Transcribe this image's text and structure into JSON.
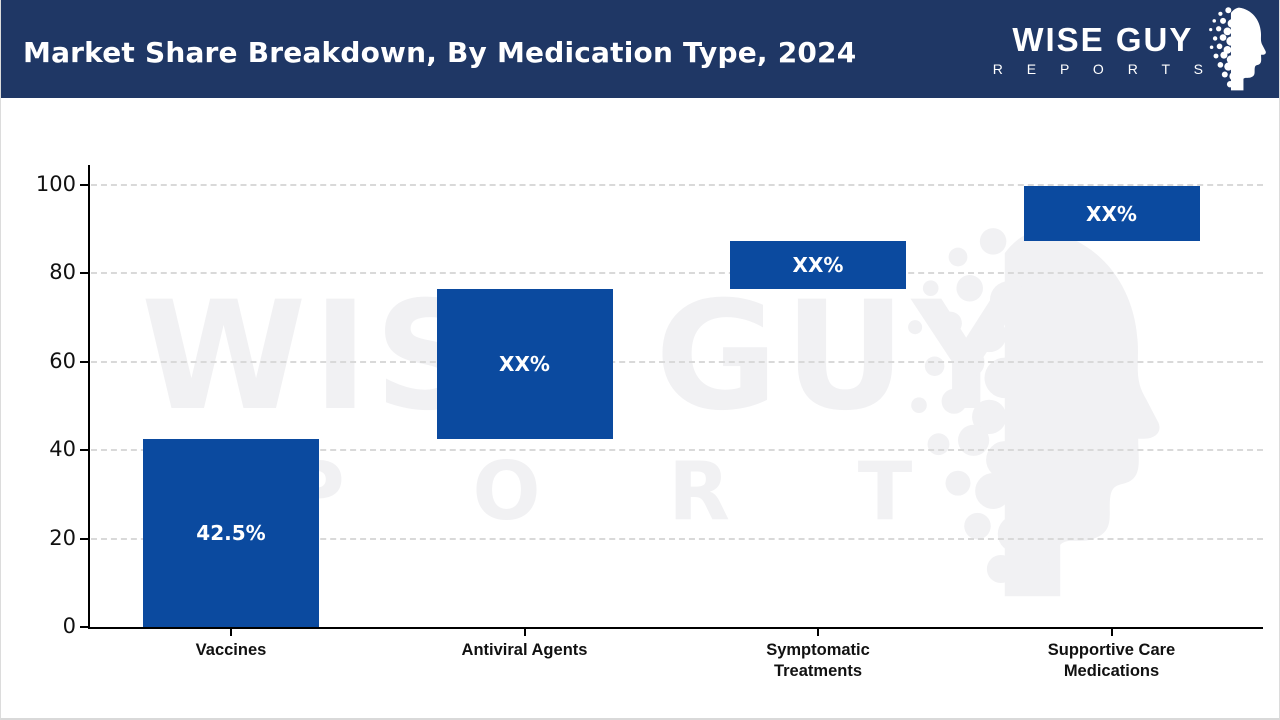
{
  "header": {
    "title": "Market Share Breakdown, By Medication Type, 2024",
    "logo": {
      "primary": "WISE GUY",
      "secondary": "R E P O R T S"
    }
  },
  "watermark": {
    "primary": "WISE GUY",
    "secondary": "P O R T S"
  },
  "chart_data": {
    "type": "bar",
    "variant": "waterfall-floating-bars",
    "title": "Market Share Breakdown, By Medication Type, 2024",
    "categories": [
      "Vaccines",
      "Antiviral Agents",
      "Symptomatic Treatments",
      "Supportive Care Medications"
    ],
    "segments": [
      {
        "category": "Vaccines",
        "start": 0,
        "end": 42.5,
        "label": "42.5%"
      },
      {
        "category": "Antiviral Agents",
        "start": 42.5,
        "end": 76.5,
        "label": "XX%"
      },
      {
        "category": "Symptomatic Treatments",
        "start": 76.5,
        "end": 87.3,
        "label": "XX%"
      },
      {
        "category": "Supportive Care Medications",
        "start": 87.3,
        "end": 99.8,
        "label": "XX%"
      }
    ],
    "ylim": [
      0,
      100
    ],
    "yticks": [
      0,
      20,
      40,
      60,
      80,
      100
    ],
    "xlabel": "",
    "ylabel": "",
    "grid": "horizontal-dashed",
    "legend": "none",
    "colors": {
      "bar": "#0b4a9f",
      "bar_label": "#ffffff",
      "grid": "#d9d9d9",
      "axis": "#000000",
      "header_bg": "#1f3765",
      "watermark": "#f1f1f3"
    }
  }
}
